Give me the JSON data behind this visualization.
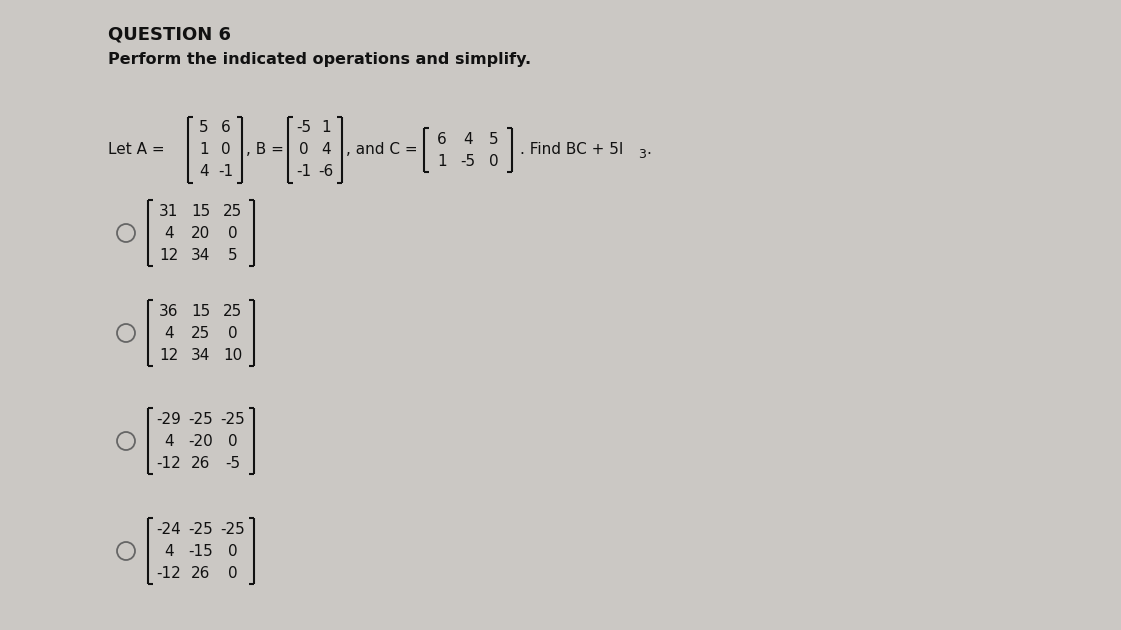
{
  "title": "QUESTION 6",
  "subtitle": "Perform the indicated operations and simplify.",
  "bg_color": "#cbc8c4",
  "text_color": "#111111",
  "matrix_A": [
    [
      "5",
      "6"
    ],
    [
      "1",
      "0"
    ],
    [
      "4",
      "-1"
    ]
  ],
  "matrix_B": [
    [
      "-5",
      "1"
    ],
    [
      "0",
      "4"
    ],
    [
      "-1",
      "-6"
    ]
  ],
  "matrix_C": [
    [
      "6",
      "4",
      "5"
    ],
    [
      "1",
      "-5",
      "0"
    ]
  ],
  "find_text": "Find BC + 5I",
  "find_sub": "3",
  "options": [
    [
      [
        "31",
        "15",
        "25"
      ],
      [
        "4",
        "20",
        "0"
      ],
      [
        "12",
        "34",
        "5"
      ]
    ],
    [
      [
        "36",
        "15",
        "25"
      ],
      [
        "4",
        "25",
        "0"
      ],
      [
        "12",
        "34",
        "10"
      ]
    ],
    [
      [
        "-29",
        "-25",
        "-25"
      ],
      [
        "4",
        "-20",
        "0"
      ],
      [
        "-12",
        "26",
        "-5"
      ]
    ],
    [
      [
        "-24",
        "-25",
        "-25"
      ],
      [
        "4",
        "-15",
        "0"
      ],
      [
        "-12",
        "26",
        "0"
      ]
    ]
  ],
  "title_fontsize": 13,
  "subtitle_fontsize": 11.5,
  "body_fontsize": 11,
  "opt_fontsize": 11
}
